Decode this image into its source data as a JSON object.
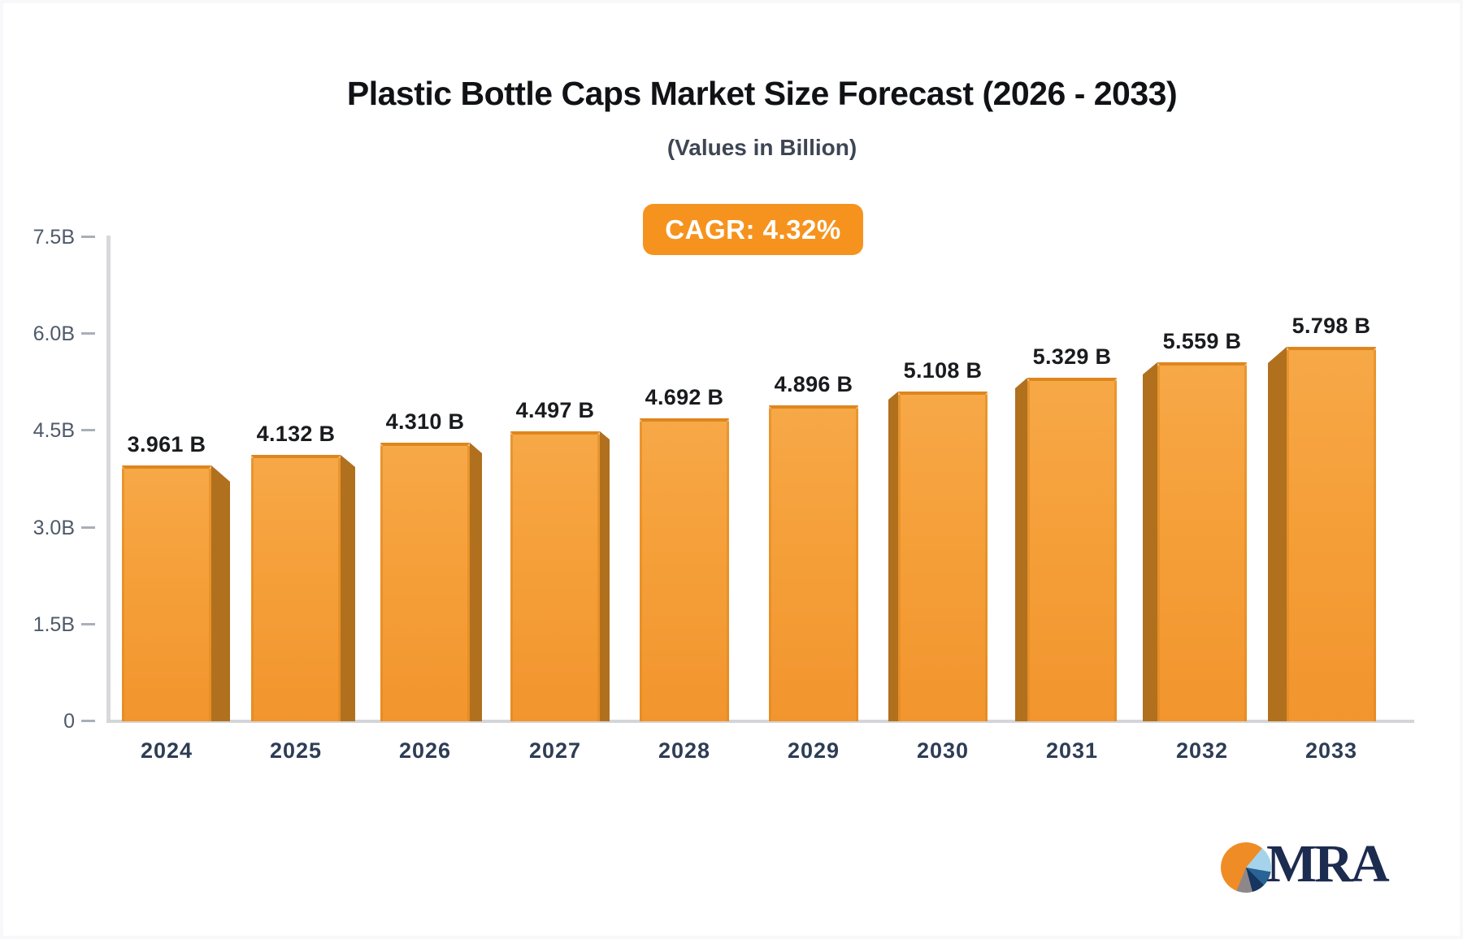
{
  "page": {
    "title": "Plastic Bottle Caps Market Size Forecast (2026 - 2033)",
    "subtitle": "(Values in Billion)",
    "cagr_badge": "CAGR: 4.32%"
  },
  "chart_data": {
    "type": "bar",
    "title": "Plastic Bottle Caps Market Size Forecast (2026 - 2033)",
    "subtitle": "(Values in Billion)",
    "unit": "Billion",
    "cagr_percent": "4.32%",
    "categories": [
      "2024",
      "2025",
      "2026",
      "2027",
      "2028",
      "2029",
      "2030",
      "2031",
      "2032",
      "2033"
    ],
    "values": [
      3.961,
      4.132,
      4.31,
      4.497,
      4.692,
      4.896,
      5.108,
      5.329,
      5.559,
      5.798
    ],
    "value_labels": [
      "3.961 B",
      "4.132 B",
      "4.310 B",
      "4.497 B",
      "4.692 B",
      "4.896 B",
      "5.108 B",
      "5.329 B",
      "5.559 B",
      "5.798 B"
    ],
    "xlabel": "",
    "ylabel": "",
    "ylim": [
      0,
      7.5
    ],
    "yticks": [
      {
        "value": 0,
        "label": "0"
      },
      {
        "value": 1.5,
        "label": "1.5B"
      },
      {
        "value": 3.0,
        "label": "3.0B"
      },
      {
        "value": 4.5,
        "label": "4.5B"
      },
      {
        "value": 6.0,
        "label": "6.0B"
      },
      {
        "value": 7.5,
        "label": "7.5B"
      }
    ],
    "grid": false,
    "legend_position": "none",
    "colors": {
      "bar_face": "#F49A33",
      "bar_face_top_edge": "#DE861E",
      "bar_side_3d": "#B0701E",
      "badge_background": "#F6931F",
      "badge_text": "#FFFFFF",
      "axis_line": "#D8D9DC",
      "tick_label": "#4E5A6A",
      "category_label": "#2E3D55",
      "value_label": "#191B1E",
      "title": "#101216"
    }
  },
  "logo": {
    "text": "MRA",
    "icon": "pie-chart-icon",
    "text_color": "#1C2B50",
    "pie_colors": [
      "#F08C26",
      "#A6D3EC",
      "#2A6396",
      "#16355F",
      "#8E8789"
    ]
  }
}
